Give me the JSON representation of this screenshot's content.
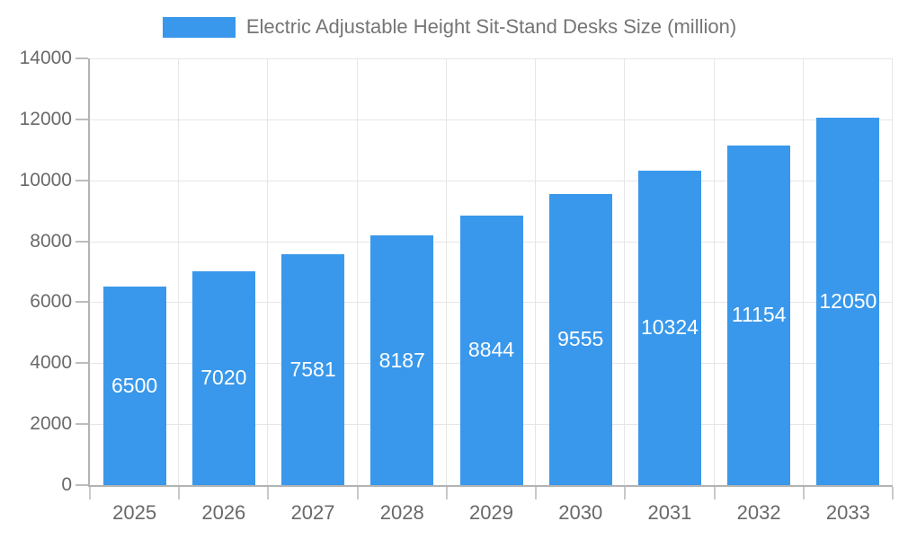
{
  "chart_data": {
    "type": "bar",
    "title": "Electric Adjustable Height Sit-Stand Desks Size (million)",
    "categories": [
      "2025",
      "2026",
      "2027",
      "2028",
      "2029",
      "2030",
      "2031",
      "2032",
      "2033"
    ],
    "values": [
      6500,
      7020,
      7581,
      8187,
      8844,
      9555,
      10324,
      11154,
      12050
    ],
    "series_name": "Electric Adjustable Height Sit-Stand Desks Size (million)",
    "xlabel": "",
    "ylabel": "",
    "ylim": [
      0,
      14000
    ],
    "ytick_step": 2000,
    "yticks": [
      0,
      2000,
      4000,
      6000,
      8000,
      10000,
      12000,
      14000
    ],
    "grid": "horizontal and vertical light gridlines",
    "legend_position": "top-center",
    "value_labels": "white, centered inside each bar"
  },
  "colors": {
    "bar": "#3998eb",
    "value_label": "#ffffff",
    "legend_text": "#757575",
    "axis_label": "#696969",
    "axis_line": "#b3b3b3",
    "gridline": "#e6e6e6",
    "background": "#ffffff"
  }
}
